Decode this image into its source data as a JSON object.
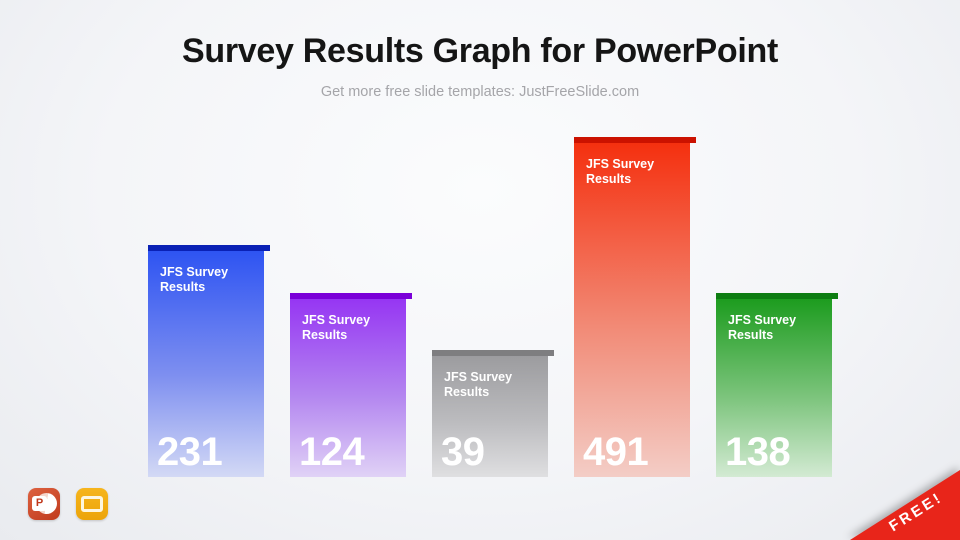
{
  "header": {
    "title": "Survey Results Graph for PowerPoint",
    "subtitle": "Get more free slide templates: JustFreeSlide.com"
  },
  "chart_data": {
    "type": "bar",
    "title": "Survey Results Graph for PowerPoint",
    "categories": [
      "JFS Survey Results",
      "JFS Survey Results",
      "JFS Survey Results",
      "JFS Survey Results",
      "JFS Survey Results"
    ],
    "values": [
      231,
      124,
      39,
      491,
      138
    ],
    "bar_label": "JFS Survey\nResults",
    "data_labels_shown": true,
    "legend": "none",
    "axes_shown": false,
    "bar_colors": [
      {
        "edge": "#0a21b5",
        "top": "#2e54f2",
        "bottom": "#d3d9f5"
      },
      {
        "edge": "#7b00d8",
        "top": "#9636f3",
        "bottom": "#e0d2f6"
      },
      {
        "edge": "#7e7e80",
        "top": "#9c9c9f",
        "bottom": "#dfdfe1"
      },
      {
        "edge": "#cb1200",
        "top": "#f4300f",
        "bottom": "#f3cdc6"
      },
      {
        "edge": "#0d7d12",
        "top": "#1d9c1f",
        "bottom": "#d3ead3"
      }
    ]
  },
  "footer": {
    "icons": [
      "powerpoint-icon",
      "google-slides-icon"
    ],
    "powerpoint_letter": "P",
    "ribbon_label": "FREE!",
    "ribbon_color": "#e8251a"
  }
}
